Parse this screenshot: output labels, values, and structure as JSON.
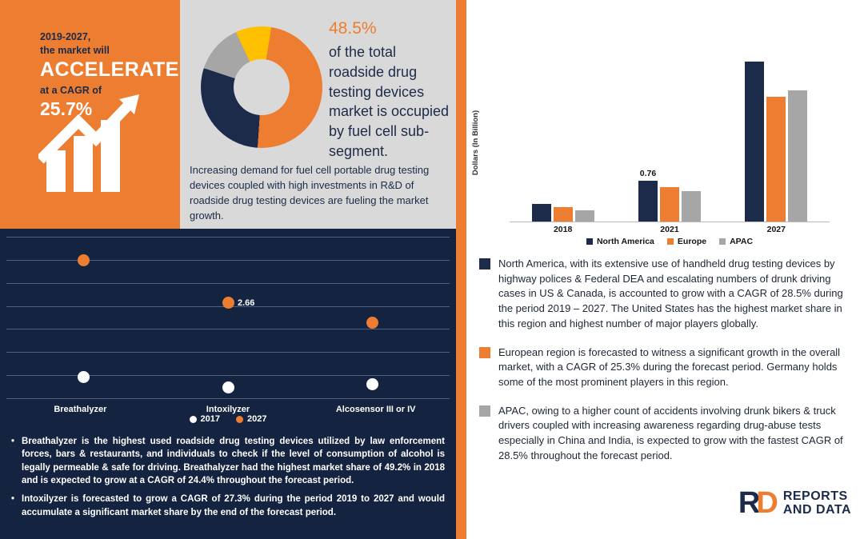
{
  "palette": {
    "orange": "#ED7D31",
    "navy": "#1B2B49",
    "navy_bg": "#142440",
    "gray": "#A6A6A6",
    "panel_gray": "#D9D9D9",
    "yellow": "#FFC000"
  },
  "promo": {
    "line1": "2019-2027,",
    "line2": "the market will",
    "line3": "ACCELERATE",
    "line4": "at a CAGR of",
    "line5": "25.7%"
  },
  "fuel_cell": {
    "pct": "48.5%",
    "headline": "of the total roadside drug testing devices market is occupied by fuel cell sub-segment.",
    "paragraph": "Increasing demand for fuel cell portable drug testing devices coupled with high investments in R&D of roadside drug testing devices are fueling the market growth."
  },
  "device_notes": [
    "Breathalyzer is the highest used roadside drug testing devices utilized by law enforcement forces, bars & restaurants, and individuals to check if the level of consumption of alcohol is legally permeable & safe for driving. Breathalyzer had the highest market share of 49.2% in 2018 and is expected to grow at a CAGR of 24.4% throughout the forecast period.",
    "Intoxilyzer is forecasted to grow a CAGR of 27.3% during the period 2019 to 2027 and would accumulate a significant market share by the end of the forecast period."
  ],
  "region_notes": [
    {
      "color": "#1B2B49",
      "text": "North America, with its extensive use of handheld drug testing devices by highway polices & Federal DEA and escalating numbers of drunk driving cases in US & Canada, is accounted to grow with a CAGR of 28.5% during the period 2019 – 2027. The United States has the highest market share in this region and highest number of major players globally."
    },
    {
      "color": "#ED7D31",
      "text": "European region is forecasted to witness a significant growth in the overall market, with a CAGR of 25.3% during the forecast period. Germany holds some of the most prominent players in this region."
    },
    {
      "color": "#A6A6A6",
      "text": "APAC, owing to a higher count of accidents involving drunk bikers & truck drivers coupled with increasing awareness regarding drug-abuse tests especially in China and India, is expected to grow with the fastest CAGR of 28.5% throughout the forecast period."
    }
  ],
  "logo": {
    "mark_r": "R",
    "mark_d": "D",
    "line1": "REPORTS",
    "line2": "AND DATA"
  },
  "chart_data": [
    {
      "type": "pie",
      "donut": true,
      "start_angle_deg": -25,
      "slices": [
        {
          "label": "",
          "value": 9.5,
          "color": "#FFC000"
        },
        {
          "label": "Fuel cell",
          "value": 48.5,
          "color": "#ED7D31"
        },
        {
          "label": "",
          "value": 29,
          "color": "#1B2B49"
        },
        {
          "label": "",
          "value": 13,
          "color": "#A6A6A6"
        }
      ]
    },
    {
      "type": "bar",
      "categories": [
        "2018",
        "2021",
        "2027"
      ],
      "series": [
        {
          "name": "North America",
          "color": "#1B2B49",
          "values": [
            0.33,
            0.76,
            2.96
          ]
        },
        {
          "name": "Europe",
          "color": "#ED7D31",
          "values": [
            0.26,
            0.64,
            2.31
          ]
        },
        {
          "name": "APAC",
          "color": "#A6A6A6",
          "values": [
            0.21,
            0.56,
            2.43
          ]
        }
      ],
      "ylabel": "Dollars (In Billion)",
      "ylim": [
        0,
        3.4
      ],
      "grid": false,
      "legend_position": "bottom",
      "data_labels": [
        {
          "category": "2021",
          "series": "North America",
          "text": "0.76"
        }
      ]
    },
    {
      "type": "scatter",
      "categories": [
        "Breathalyzer",
        "Intoxilyzer",
        "Alcosensor III or IV"
      ],
      "series": [
        {
          "name": "2017",
          "color": "#FFFFFF",
          "values": [
            0.6,
            0.31,
            0.38
          ]
        },
        {
          "name": "2027",
          "color": "#ED7D31",
          "values": [
            3.84,
            2.66,
            2.1
          ]
        }
      ],
      "ylim": [
        0,
        4.5
      ],
      "gridlines": 8,
      "legend_position": "bottom",
      "data_labels": [
        {
          "category": "Intoxilyzer",
          "series": "2027",
          "text": "2.66"
        }
      ]
    }
  ]
}
